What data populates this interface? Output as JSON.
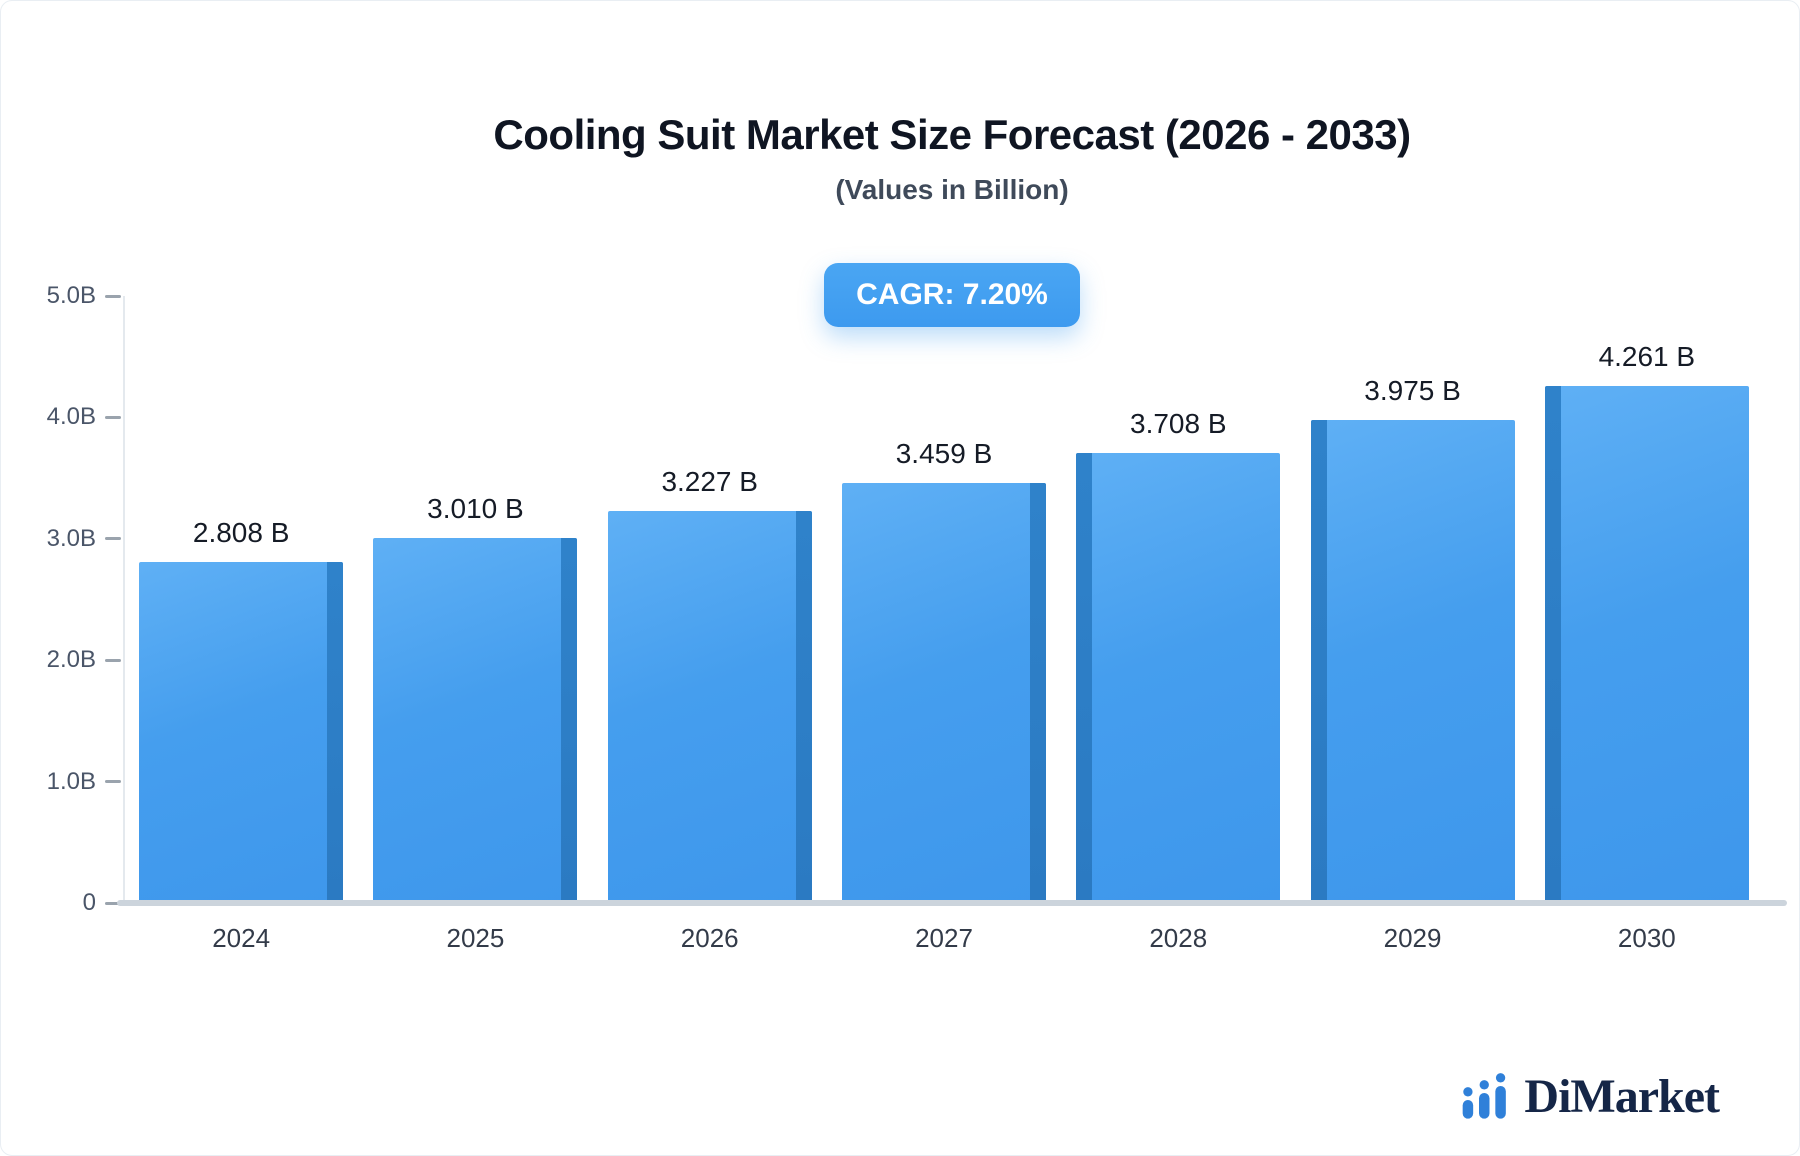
{
  "title": "Cooling Suit Market Size Forecast (2026 - 2033)",
  "subtitle": "(Values in Billion)",
  "badge": {
    "label": "CAGR: 7.20%",
    "color": "#41A0F1"
  },
  "logo": {
    "text": "DiMarket",
    "text_color": "#152647",
    "icon_color": "#2F80D9",
    "icon_name": "bar-chart-icon"
  },
  "chart_data": {
    "type": "bar",
    "title": "Cooling Suit Market Size Forecast (2026 - 2033)",
    "subtitle": "(Values in Billion)",
    "categories": [
      "2024",
      "2025",
      "2026",
      "2027",
      "2028",
      "2029",
      "2030"
    ],
    "values": [
      2.808,
      3.01,
      3.227,
      3.459,
      3.708,
      3.975,
      4.261
    ],
    "value_labels": [
      "2.808 B",
      "3.010 B",
      "3.227 B",
      "3.459 B",
      "3.708 B",
      "3.975 B",
      "4.261 B"
    ],
    "xlabel": "",
    "ylabel": "",
    "ylim": [
      0,
      5
    ],
    "y_ticks": [
      "5.0B",
      "4.0B",
      "3.0B",
      "2.0B",
      "1.0B",
      "0"
    ],
    "grid": false,
    "legend": false,
    "bar_color": "#3F9BED",
    "bar_side_color": "#2B7CC5",
    "annotation": "CAGR: 7.20%"
  }
}
